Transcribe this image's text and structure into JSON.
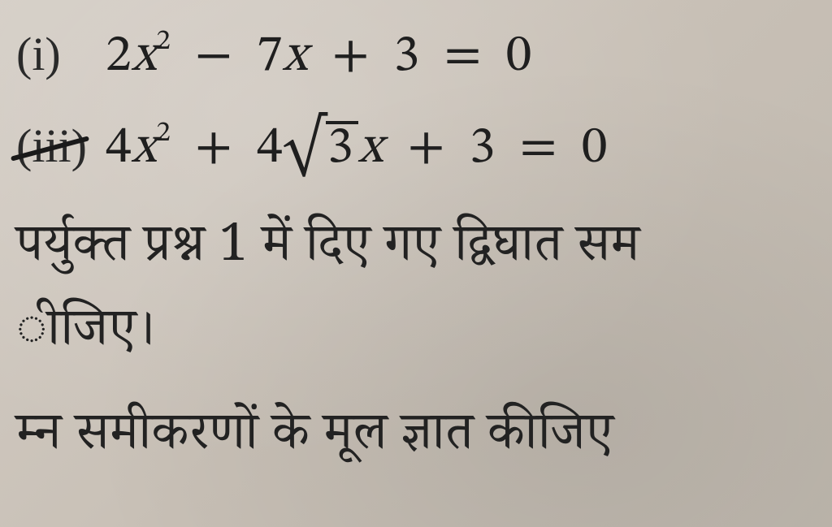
{
  "background_color": "#c8c0b6",
  "text_color": "#2a2a2a",
  "math_color": "#1f1f1f",
  "font_family_math": "Times New Roman",
  "font_family_hindi": "Noto Serif Devanagari",
  "fontsize_label": 58,
  "fontsize_math": 64,
  "fontsize_hindi": 64,
  "items": [
    {
      "label": "(i)",
      "struck": false,
      "coeff_a": "2",
      "var1": "x",
      "exp1": "2",
      "op1": "−",
      "coeff_b": "7",
      "var2": "x",
      "op2": "+",
      "coeff_c": "3",
      "eq": "=",
      "rhs": "0",
      "has_sqrt": false
    },
    {
      "label": "(iii)",
      "struck": true,
      "coeff_a": "4",
      "var1": "x",
      "exp1": "2",
      "op1": "+",
      "coeff_b": "4",
      "sqrt_radicand": "3",
      "var2": "x",
      "op2": "+",
      "coeff_c": "3",
      "eq": "=",
      "rhs": "0",
      "has_sqrt": true
    }
  ],
  "hindi_line1": "पर्युक्त प्रश्न 1 में दिए गए द्विघात सम",
  "hindi_line2": "ीजिए।",
  "hindi_line3": "म्न समीकरणों के मूल ज्ञात कीजिए"
}
